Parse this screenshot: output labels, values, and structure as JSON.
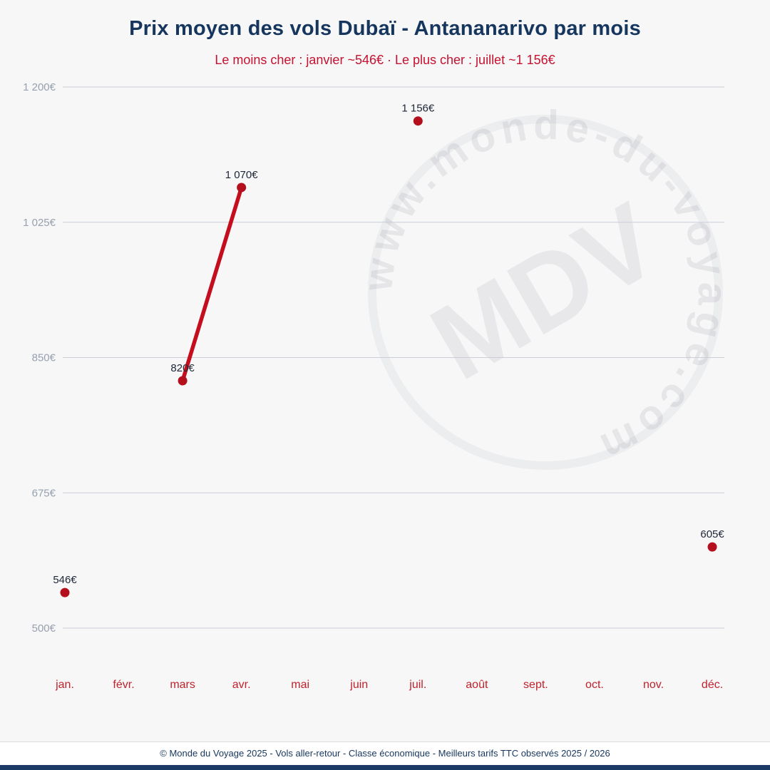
{
  "header": {
    "title": "Prix moyen des vols Dubaï - Antananarivo par mois",
    "subtitle": "Le moins cher : janvier ~546€ · Le plus cher : juillet ~1 156€"
  },
  "watermark": {
    "url": "www.monde-du-voyage.com",
    "monogram": "MDV"
  },
  "footer": {
    "text": "© Monde du Voyage 2025 - Vols aller-retour - Classe économique - Meilleurs tarifs TTC observés 2025 / 2026"
  },
  "chart_data": {
    "type": "scatter",
    "title": "Prix moyen des vols Dubaï - Antananarivo par mois",
    "categories": [
      "jan.",
      "févr.",
      "mars",
      "avr.",
      "mai",
      "juin",
      "juil.",
      "août",
      "sept.",
      "oct.",
      "nov.",
      "déc."
    ],
    "values": [
      546,
      null,
      820,
      1070,
      null,
      null,
      1156,
      null,
      null,
      null,
      null,
      605
    ],
    "labels": [
      "546€",
      null,
      "820€",
      "1 070€",
      null,
      null,
      "1 156€",
      null,
      null,
      null,
      null,
      "605€"
    ],
    "ylim": [
      500,
      1200
    ],
    "yticks": [
      500,
      675,
      850,
      1025,
      1200
    ],
    "ytick_labels": [
      "500€",
      "675€",
      "850€",
      "1 025€",
      "1 200€"
    ],
    "connected_indices": [
      2,
      3
    ],
    "grid": true,
    "legend": "none",
    "point_color": "#b30f1d",
    "line_color": "#c40e1e",
    "xlabel": "",
    "ylabel": ""
  }
}
